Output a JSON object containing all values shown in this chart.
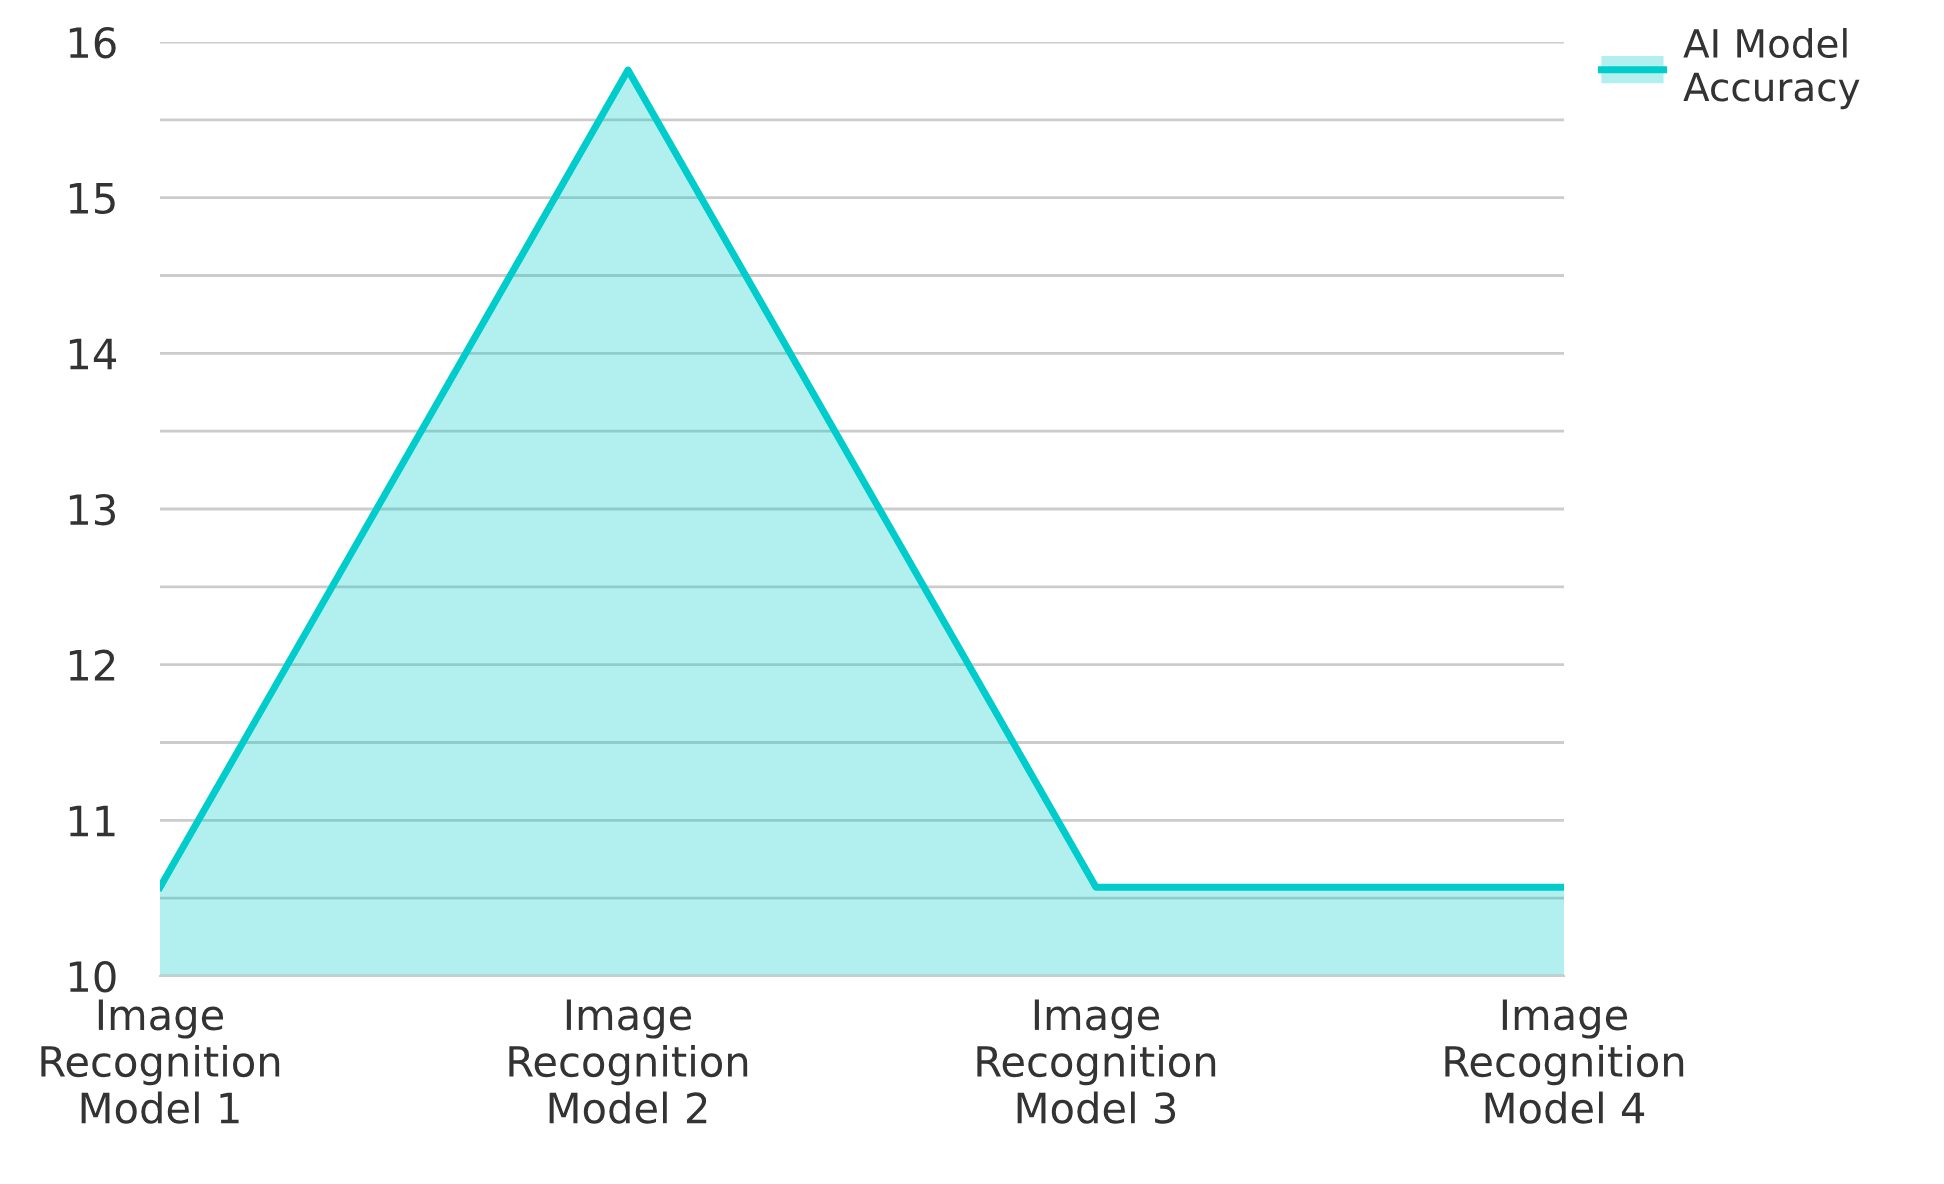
{
  "chart_data": {
    "type": "area",
    "categories": [
      "Image\nRecognition\nModel 1",
      "Image\nRecognition\nModel 2",
      "Image\nRecognition\nModel 3",
      "Image\nRecognition\nModel 4"
    ],
    "series": [
      {
        "name": "AI Model\nAccuracy",
        "color": "#00cccc",
        "values": [
          10.57,
          15.82,
          10.57,
          10.57
        ]
      }
    ],
    "ylim": [
      10,
      16
    ],
    "yticks": [
      10,
      {
        "value": 10.5,
        "label": null
      },
      11,
      {
        "value": 11.5,
        "label": null
      },
      12,
      {
        "value": 12.5,
        "label": null
      },
      13,
      {
        "value": 13.5,
        "label": null
      },
      14,
      {
        "value": 14.5,
        "label": null
      },
      15,
      {
        "value": 15.5,
        "label": null
      },
      16
    ],
    "grid": "y",
    "legend": "top right"
  }
}
